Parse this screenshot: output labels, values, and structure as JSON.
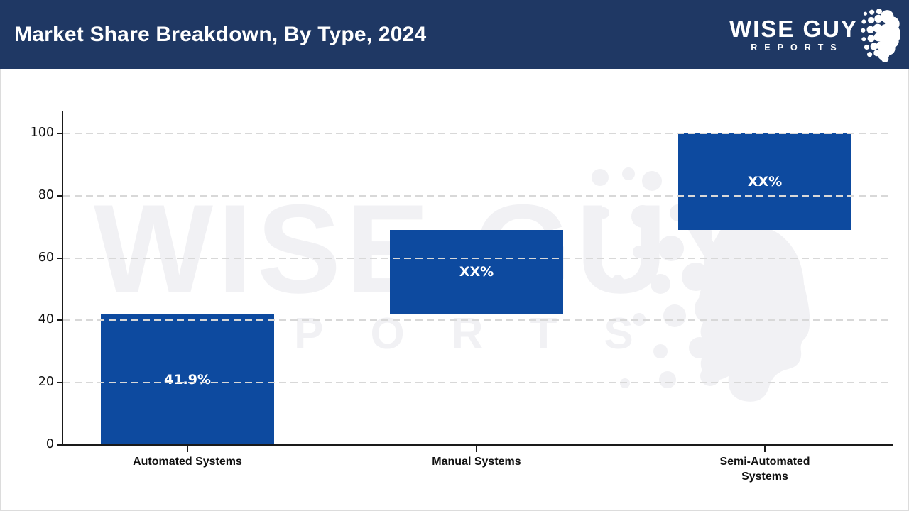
{
  "header": {
    "title": "Market Share Breakdown, By Type, 2024",
    "bg_color": "#1f3864",
    "logo": {
      "name": "WISE GUY",
      "tagline": "REPORTS"
    }
  },
  "watermark": {
    "line1": "WISE GUY",
    "line2": "REPORTS"
  },
  "chart_data": {
    "type": "bar",
    "subtype": "floating-waterfall",
    "title": "Market Share Breakdown, By Type, 2024",
    "categories": [
      "Automated Systems",
      "Manual Systems",
      "Semi-Automated Systems"
    ],
    "segments": [
      {
        "category": "Automated Systems",
        "label_lines": [
          "Automated Systems"
        ],
        "start": 0,
        "end": 41.9,
        "value_label": "41.9%"
      },
      {
        "category": "Manual Systems",
        "label_lines": [
          "Manual Systems"
        ],
        "start": 41.9,
        "end": 69.1,
        "value_label": "XX%"
      },
      {
        "category": "Semi-Automated Systems",
        "label_lines": [
          "Semi-Automated",
          "Systems"
        ],
        "start": 69.1,
        "end": 100,
        "value_label": "XX%"
      }
    ],
    "xlabel": "",
    "ylabel": "",
    "ylim": [
      0,
      100
    ],
    "yticks": [
      0,
      20,
      40,
      60,
      80,
      100
    ],
    "grid": "horizontal-dashed",
    "legend": "none",
    "bar_color": "#0d4a9f",
    "value_label_color": "#ffffff",
    "axis_color": "#1a1a1a",
    "gridline_color": "#d8d8d8"
  }
}
